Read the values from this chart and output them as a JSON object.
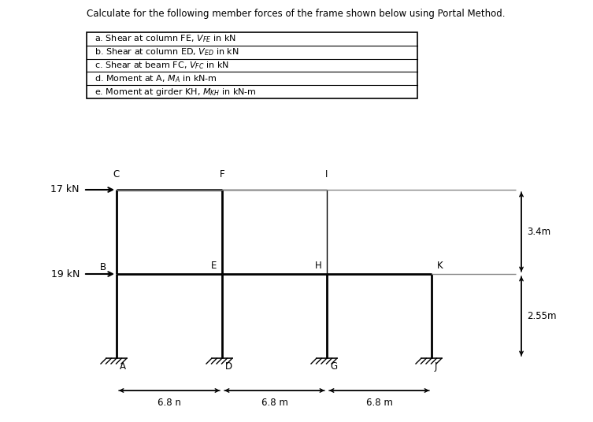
{
  "title": "Calculate for the following member forces of the frame shown below using Portal Method.",
  "table_rows": [
    "a. Shear at column FE, $V_{FE}$ in kN",
    "b. Shear at column ED, $V_{ED}$ in kN",
    "c. Shear at beam FC, $V_{FC}$ in kN",
    "d. Moment at A, $M_A$ in kN-m",
    "e. Moment at girder KH, $M_{KH}$ in kN-m"
  ],
  "load_17_label": "17 kN",
  "load_19_label": "19 kN",
  "dim_34": "3.4m",
  "dim_255": "2.55m",
  "dim_68a": "6.8 n",
  "dim_68b": "6.8 m",
  "dim_68c": "6.8 m",
  "frame_color": "#000000",
  "bg_color": "#ffffff",
  "linewidth": 2.0,
  "thin_linewidth": 1.0
}
